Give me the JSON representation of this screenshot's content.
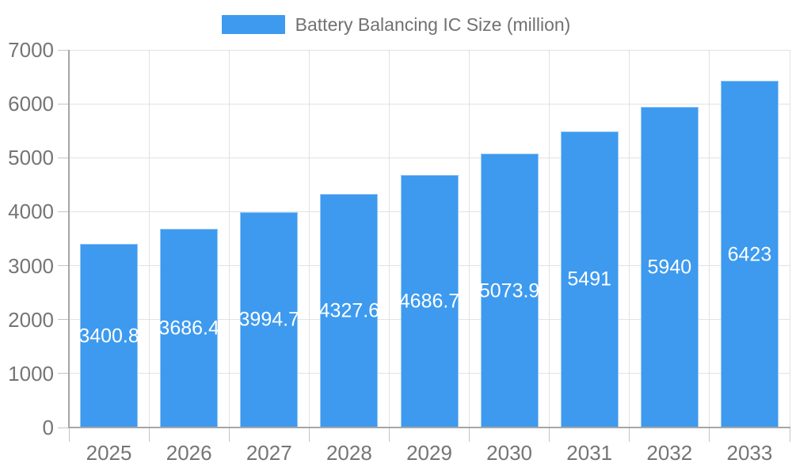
{
  "legend": {
    "label": "Battery Balancing IC Size (million)"
  },
  "chart_data": {
    "type": "bar",
    "title": "Battery Balancing IC Size (million)",
    "categories": [
      "2025",
      "2026",
      "2027",
      "2028",
      "2029",
      "2030",
      "2031",
      "2032",
      "2033"
    ],
    "values": [
      3400.8,
      3686.4,
      3994.7,
      4327.6,
      4686.7,
      5073.9,
      5491,
      5940,
      6423
    ],
    "value_labels": [
      "3400.8",
      "3686.4",
      "3994.7",
      "4327.6",
      "4686.7",
      "5073.9",
      "5491",
      "5940",
      "6423"
    ],
    "xlabel": "",
    "ylabel": "",
    "ylim": [
      0,
      7000
    ],
    "y_ticks": [
      0,
      1000,
      2000,
      3000,
      4000,
      5000,
      6000,
      7000
    ],
    "grid": true,
    "legend_position": "top",
    "bar_color": "#3D9AEE",
    "value_label_color": "#ffffff",
    "axis_text_color": "#757575"
  }
}
